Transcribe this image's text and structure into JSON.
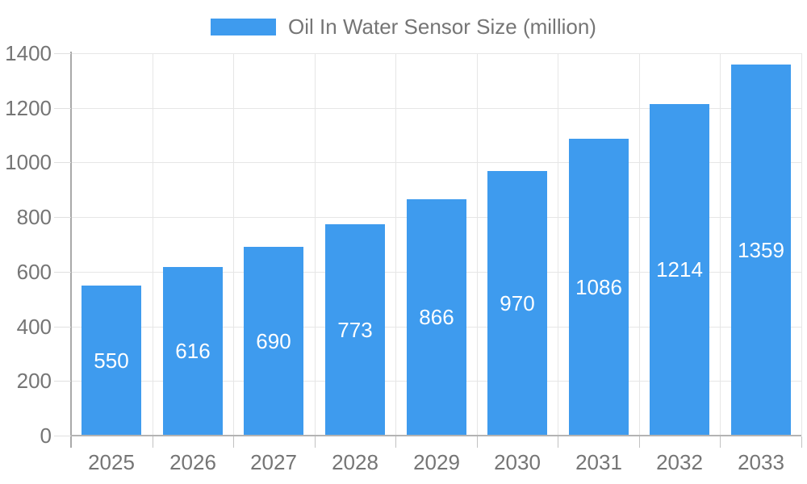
{
  "legend": {
    "label": "Oil In Water Sensor Size (million)"
  },
  "chart_data": {
    "type": "bar",
    "title": "Oil In Water Sensor Size (million)",
    "series_name": "Oil In Water Sensor Size (million)",
    "categories": [
      "2025",
      "2026",
      "2027",
      "2028",
      "2029",
      "2030",
      "2031",
      "2032",
      "2033"
    ],
    "values": [
      550,
      616,
      690,
      773,
      866,
      970,
      1086,
      1214,
      1359
    ],
    "xlabel": "",
    "ylabel": "",
    "ylim": [
      0,
      1400
    ],
    "yticks": [
      0,
      200,
      400,
      600,
      800,
      1000,
      1200,
      1400
    ],
    "grid": true,
    "legend_position": "top",
    "bar_color": "#3E9BEE",
    "data_label_color": "#ffffff",
    "axis_text_color": "#757575",
    "gridline_color": "#e6e6e6",
    "axis_line_color": "#a9a9a9"
  }
}
